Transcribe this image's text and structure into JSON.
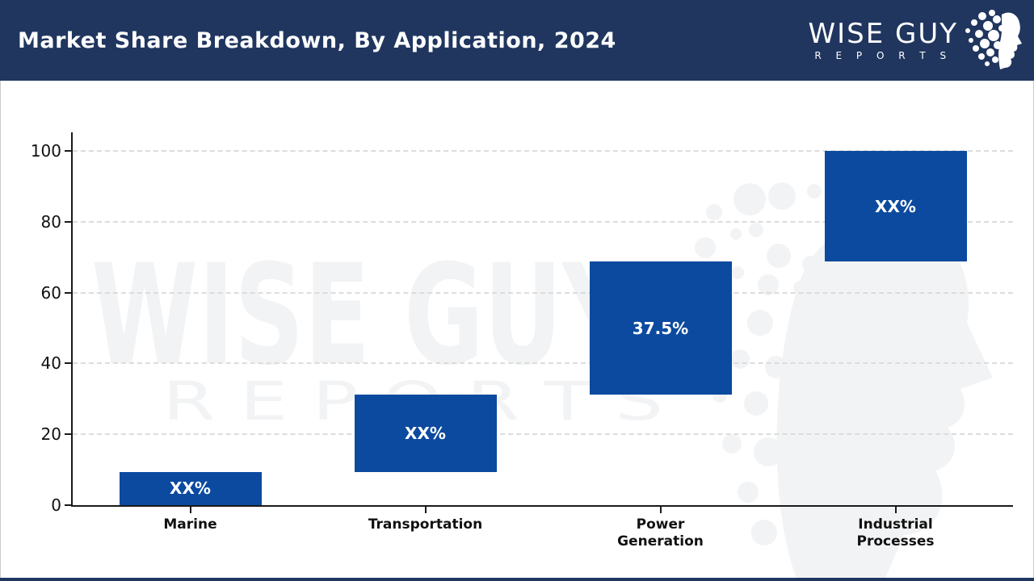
{
  "header": {
    "title": "Market Share Breakdown, By Application, 2024",
    "brand": {
      "name": "WISE GUY",
      "sub": "R E P O R T S"
    }
  },
  "watermark": {
    "line1": "WISE GUY",
    "line2": "R E P O R T S"
  },
  "chart_data": {
    "type": "bar",
    "subtype": "waterfall",
    "title": "Market Share Breakdown, By Application, 2024",
    "categories": [
      "Marine",
      "Transportation",
      "Power Generation",
      "Industrial Processes"
    ],
    "segments": [
      {
        "category": "Marine",
        "start": 0,
        "end": 9.4,
        "label": "XX%"
      },
      {
        "category": "Transportation",
        "start": 9.4,
        "end": 31.25,
        "label": "XX%"
      },
      {
        "category": "Power Generation",
        "start": 31.25,
        "end": 68.75,
        "label": "37.5%"
      },
      {
        "category": "Industrial Processes",
        "start": 68.75,
        "end": 100,
        "label": "XX%"
      }
    ],
    "yticks": [
      0,
      20,
      40,
      60,
      80,
      100
    ],
    "ylim": [
      0,
      105
    ],
    "xlabel": "",
    "ylabel": "",
    "grid": "dashed-horizontal",
    "legend": "none",
    "bar_color": "#0b4a9f",
    "label_color": "#ffffff"
  },
  "colors": {
    "header_bg": "#20365f",
    "bar": "#0b4a9f",
    "grid": "#dcdcdc",
    "axis": "#1a1a1a",
    "watermark": "#f2f3f5"
  }
}
